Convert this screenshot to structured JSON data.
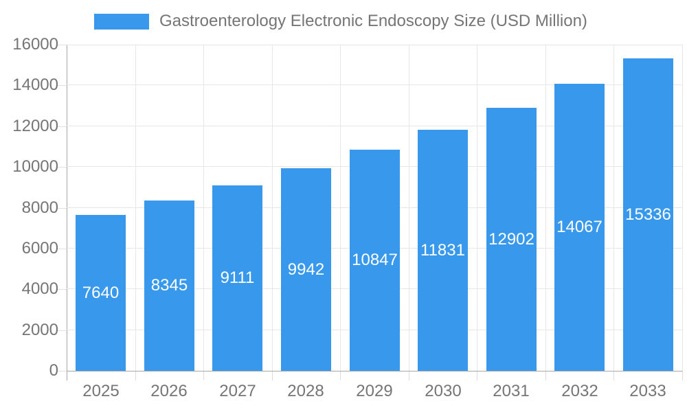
{
  "chart_data": {
    "type": "bar",
    "title": "Gastroenterology Electronic Endoscopy Size (USD Million)",
    "categories": [
      "2025",
      "2026",
      "2027",
      "2028",
      "2029",
      "2030",
      "2031",
      "2032",
      "2033"
    ],
    "series": [
      {
        "name": "Gastroenterology Electronic Endoscopy Size (USD Million)",
        "values": [
          7640,
          8345,
          9111,
          9942,
          10847,
          11831,
          12902,
          14067,
          15336
        ]
      }
    ],
    "bar_value_labels": [
      "7640",
      "8345",
      "9111",
      "9942",
      "10847",
      "11831",
      "12902",
      "14067",
      "15336"
    ],
    "xlabel": "",
    "ylabel": "",
    "ylim": [
      0,
      16000
    ],
    "yticks": [
      0,
      2000,
      4000,
      6000,
      8000,
      10000,
      12000,
      14000,
      16000
    ],
    "ytick_labels": [
      "0",
      "2000",
      "4000",
      "6000",
      "8000",
      "10000",
      "12000",
      "14000",
      "16000"
    ],
    "grid": true,
    "legend_position": "top",
    "colors": {
      "bar": "#3899EC",
      "bar_label": "#ffffff",
      "axis_text": "#757575",
      "gridline": "#e6e6e6",
      "axis_line": "#a6a6a6",
      "tick": "#e0e0e0",
      "background": "#ffffff"
    }
  }
}
